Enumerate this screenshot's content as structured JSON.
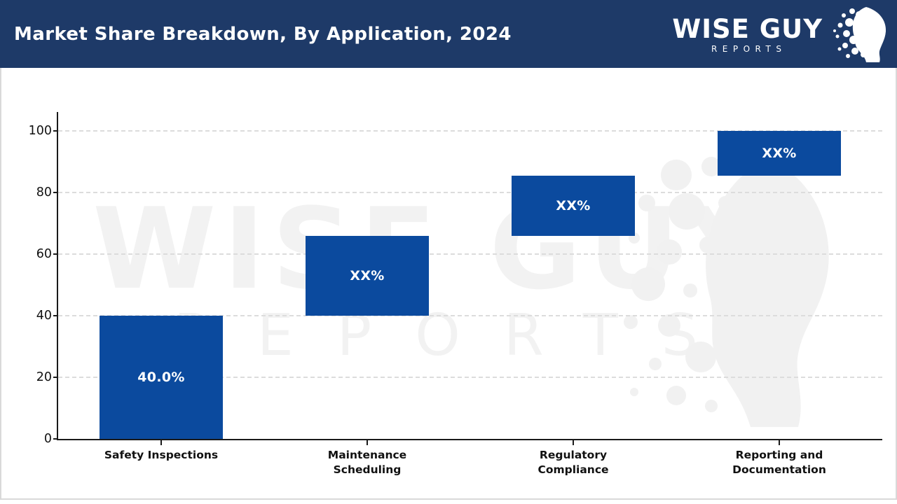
{
  "header": {
    "title": "Market Share Breakdown, By Application, 2024",
    "logo": {
      "line1": "WISE GUY",
      "line2": "REPORTS"
    }
  },
  "watermark": {
    "line1": "WISE GUY",
    "line2": "REPORTS"
  },
  "chart_data": {
    "type": "bar",
    "subtype": "waterfall",
    "title": "Market Share Breakdown, By Application, 2024",
    "categories": [
      "Safety Inspections",
      "Maintenance Scheduling",
      "Regulatory Compliance",
      "Reporting and Documentation"
    ],
    "bars": [
      {
        "category": "Safety Inspections",
        "label_lines": [
          "Safety Inspections"
        ],
        "start": 0,
        "end": 40,
        "bar_label": "40.0%"
      },
      {
        "category": "Maintenance Scheduling",
        "label_lines": [
          "Maintenance",
          "Scheduling"
        ],
        "start": 40,
        "end": 66,
        "bar_label": "XX%"
      },
      {
        "category": "Regulatory Compliance",
        "label_lines": [
          "Regulatory",
          "Compliance"
        ],
        "start": 66,
        "end": 85.5,
        "bar_label": "XX%"
      },
      {
        "category": "Reporting and Documentation",
        "label_lines": [
          "Reporting and",
          "Documentation"
        ],
        "start": 85.5,
        "end": 100,
        "bar_label": "XX%"
      }
    ],
    "estimated_segment_values": [
      40.0,
      26.0,
      19.5,
      14.5
    ],
    "yticks": [
      0,
      20,
      40,
      60,
      80,
      100
    ],
    "ylim": [
      0,
      106
    ],
    "xlabel": "",
    "ylabel": "",
    "grid": "horizontal dashed",
    "legend": "none",
    "bar_color": "#0b4a9e",
    "bar_label_color": "#ffffff",
    "header_color": "#1e3a68"
  }
}
